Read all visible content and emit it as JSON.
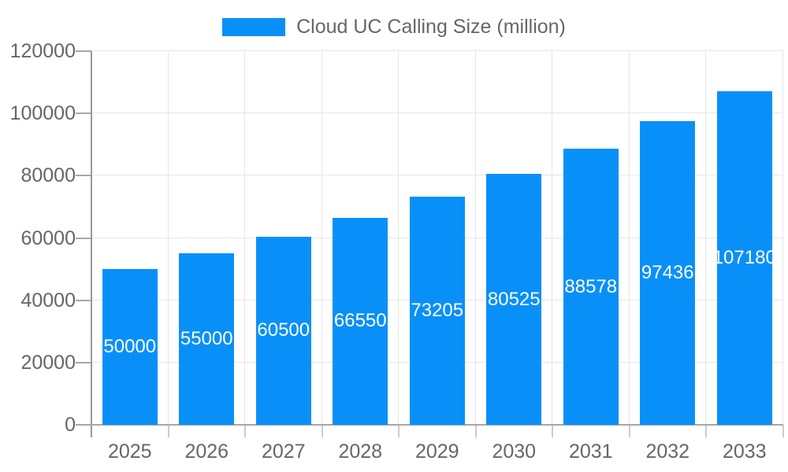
{
  "page": {
    "background": "#ffffff"
  },
  "chart_data": {
    "type": "bar",
    "title": "Cloud UC Calling Size (million)",
    "legend_position": "top",
    "categories": [
      "2025",
      "2026",
      "2027",
      "2028",
      "2029",
      "2030",
      "2031",
      "2032",
      "2033"
    ],
    "series": [
      {
        "name": "Cloud UC Calling Size (million)",
        "values": [
          50000,
          55000,
          60500,
          66550,
          73205,
          80525,
          88578,
          97436,
          107180
        ]
      }
    ],
    "data_labels": [
      "50000",
      "55000",
      "60500",
      "66550",
      "73205",
      "80525",
      "88578",
      "97436",
      "107180"
    ],
    "xlabel": "",
    "ylabel": "",
    "ylim": [
      0,
      120000
    ],
    "yticks": [
      0,
      20000,
      40000,
      60000,
      80000,
      100000,
      120000
    ],
    "ytick_labels": [
      "0",
      "20000",
      "40000",
      "60000",
      "80000",
      "100000",
      "120000"
    ],
    "grid": "both",
    "colors": {
      "bar": "#0990f8",
      "data_label": "#ffffff",
      "axis_text": "#666666",
      "legend_text": "#666666",
      "gridline": "#e6e6e6",
      "x_axis_line": "#a6a6a6",
      "y_axis_line": "#999999",
      "y_tick": "#a6a6a6",
      "x_tick": "#cccccc"
    }
  }
}
